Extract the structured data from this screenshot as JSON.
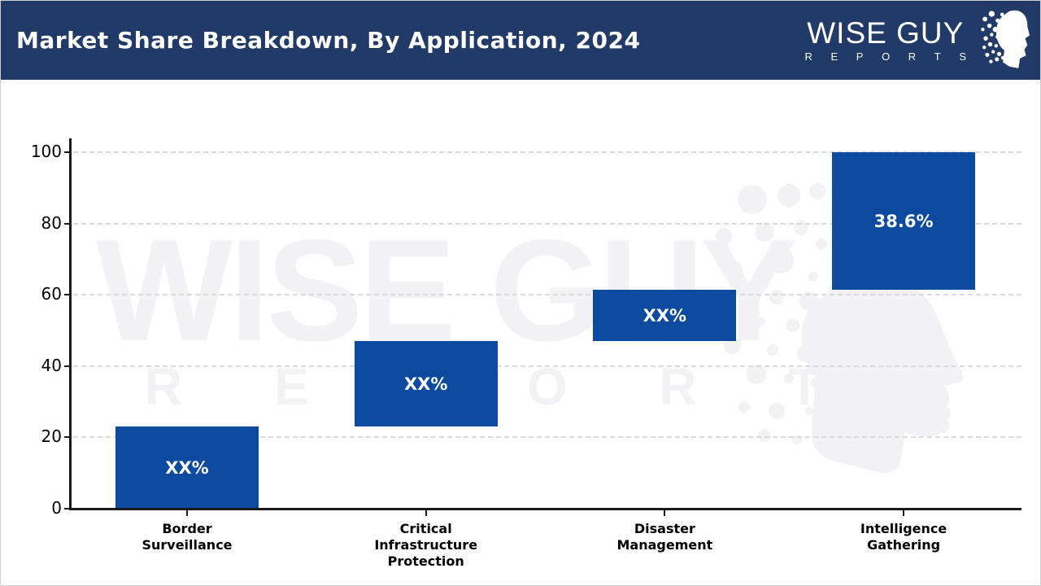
{
  "header": {
    "title": "Market Share Breakdown, By Application, 2024",
    "logo": {
      "line1": "WISE GUY",
      "line2": "REPORTS"
    }
  },
  "watermark": {
    "line1": "WISE GUY",
    "line2": "REPORTS"
  },
  "chart_data": {
    "type": "bar",
    "subtype": "waterfall",
    "title": "Market Share Breakdown, By Application, 2024",
    "categories": [
      "Border\nSurveillance",
      "Critical\nInfrastructure\nProtection",
      "Disaster\nManagement",
      "Intelligence\nGathering"
    ],
    "segments": [
      {
        "category": "Border Surveillance",
        "start": 0,
        "end": 23,
        "label": "XX%"
      },
      {
        "category": "Critical Infrastructure Protection",
        "start": 23,
        "end": 47,
        "label": "XX%"
      },
      {
        "category": "Disaster Management",
        "start": 47,
        "end": 61.4,
        "label": "XX%"
      },
      {
        "category": "Intelligence Gathering",
        "start": 61.4,
        "end": 100,
        "label": "38.6%"
      }
    ],
    "ylim": [
      0,
      100
    ],
    "yticks": [
      0,
      20,
      40,
      60,
      80,
      100
    ],
    "grid": "horizontal-dashed",
    "legend": "none",
    "bar_color": "#0b4a9e",
    "bar_label_color": "#ffffff",
    "grid_color": "#d9d9d9",
    "axis_color": "#1a1a1a",
    "header_color": "#213a67",
    "watermark_color": "#f2f2f4"
  }
}
